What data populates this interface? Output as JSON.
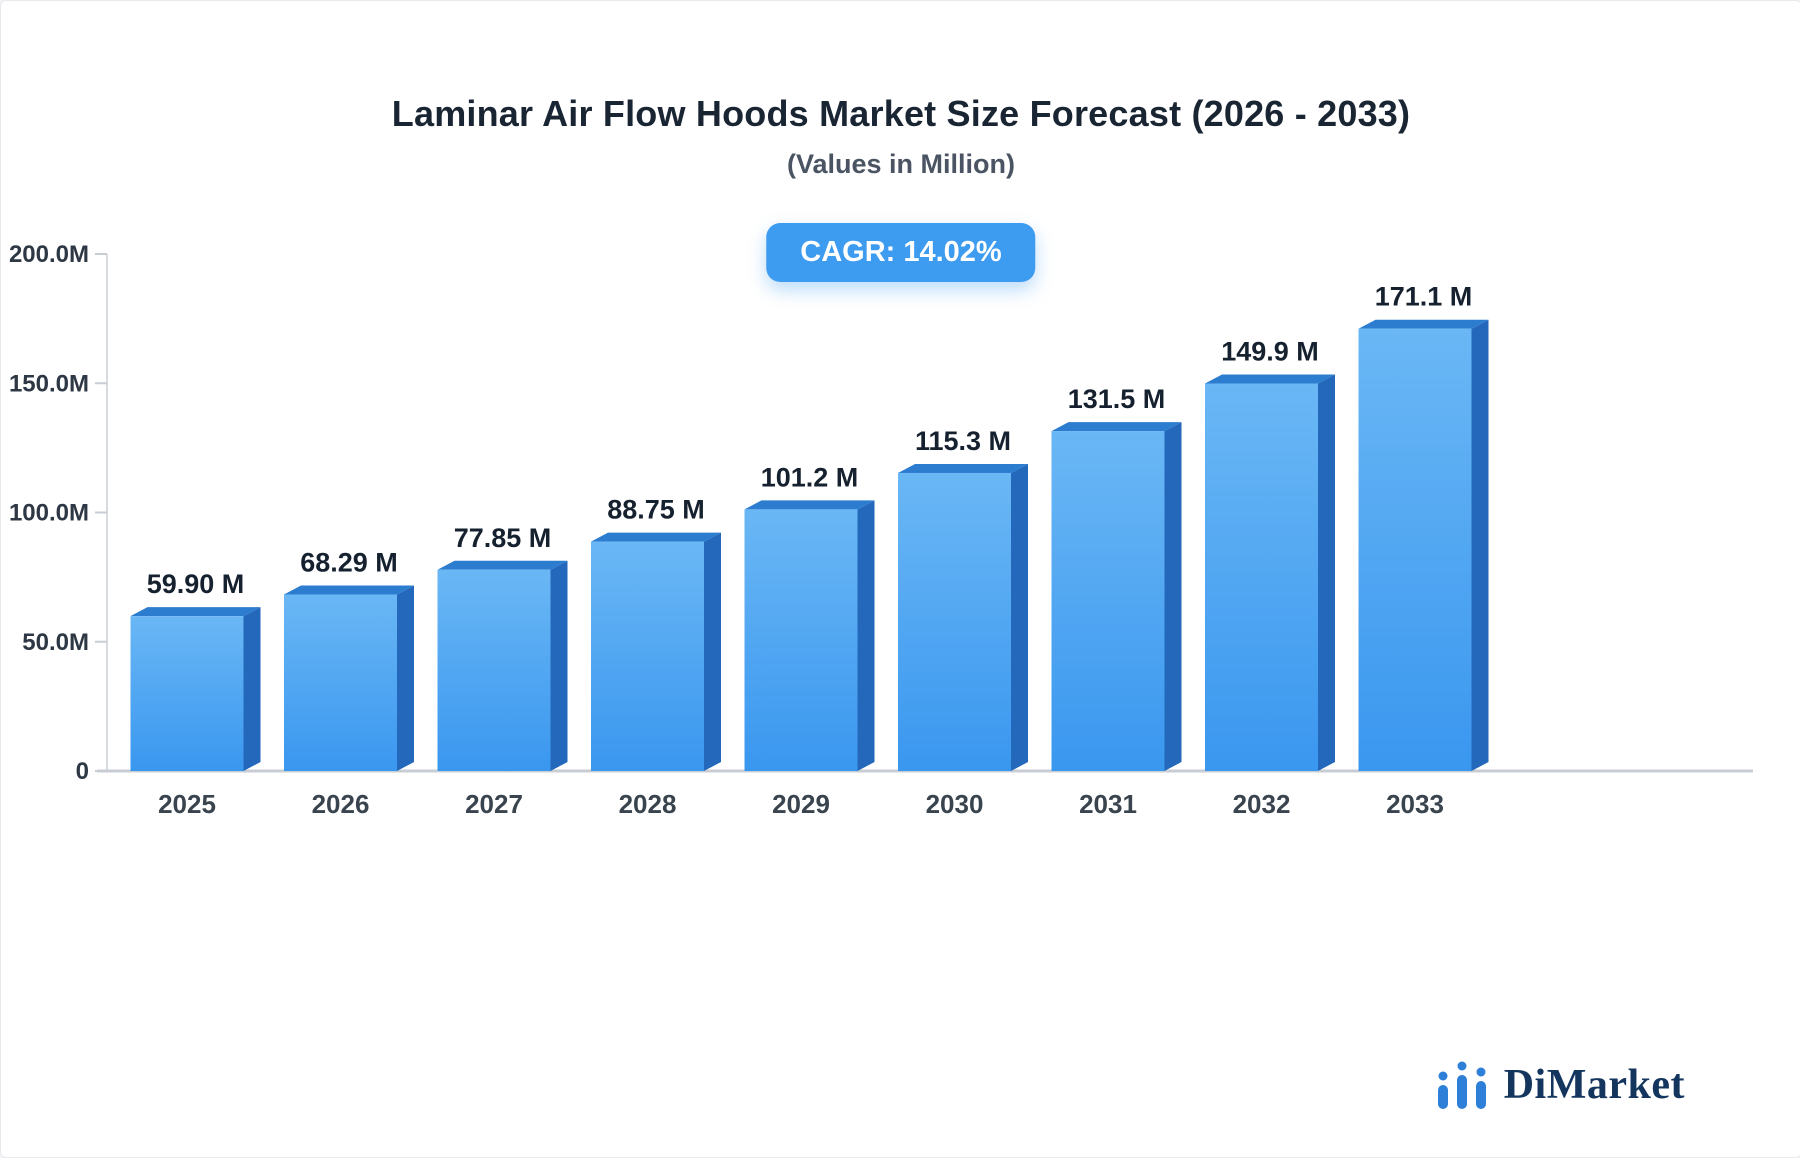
{
  "title": "Laminar Air Flow Hoods Market Size Forecast (2026 - 2033)",
  "subtitle": "(Values in Million)",
  "cagr_badge": "CAGR: 14.02%",
  "logo": {
    "text": "DiMarket"
  },
  "colors": {
    "bar_front_light": "#6ab7f5",
    "bar_front": "#3a97ef",
    "bar_top": "#2c7dd0",
    "bar_side": "#2368ba",
    "badge": "#3d9bf0",
    "value_label": "#16212f",
    "axis_label": "#39444f",
    "tick_label": "#2e3845",
    "axis_line": "#d7dbe0",
    "baseline": "#c8cdd3",
    "logo_blue": "#2e7fd8"
  },
  "chart_data": {
    "type": "bar",
    "title": "Laminar Air Flow Hoods Market Size Forecast (2026 - 2033)",
    "subtitle": "(Values in Million)",
    "xlabel": "",
    "ylabel": "",
    "categories": [
      "2025",
      "2026",
      "2027",
      "2028",
      "2029",
      "2030",
      "2031",
      "2032",
      "2033"
    ],
    "values": [
      59.9,
      68.29,
      77.85,
      88.75,
      101.2,
      115.3,
      131.5,
      149.9,
      171.1
    ],
    "value_labels": [
      "59.90 M",
      "68.29 M",
      "77.85 M",
      "88.75 M",
      "101.2 M",
      "115.3 M",
      "131.5 M",
      "149.9 M",
      "171.1 M"
    ],
    "ylim": [
      0,
      200
    ],
    "yticks": [
      {
        "label": "0",
        "value": 0
      },
      {
        "label": "50.0M",
        "value": 50
      },
      {
        "label": "100.0M",
        "value": 100
      },
      {
        "label": "150.0M",
        "value": 150
      },
      {
        "label": "200.0M",
        "value": 200
      }
    ],
    "grid": false,
    "legend": false,
    "style": "3d-bar"
  }
}
